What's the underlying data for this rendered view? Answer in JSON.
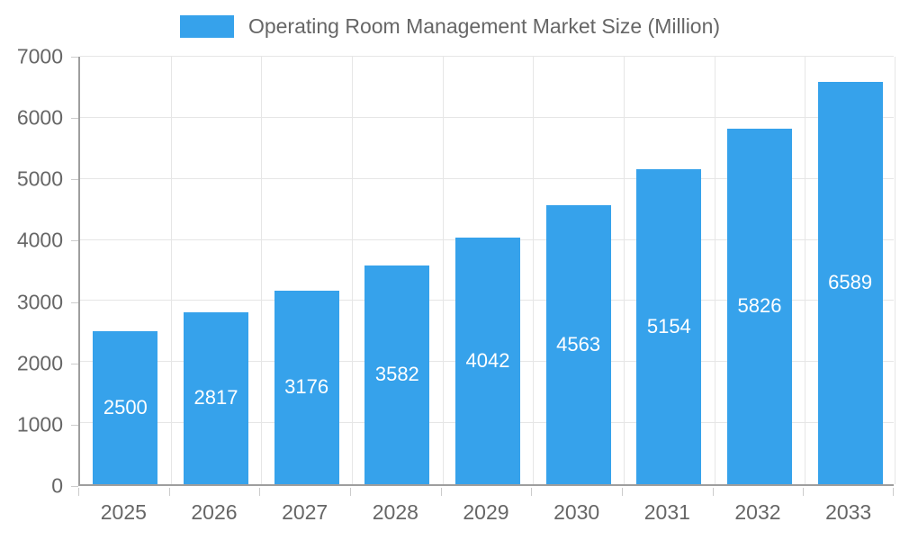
{
  "chart_data": {
    "type": "bar",
    "title": "Operating Room Management Market Size (Million)",
    "categories": [
      "2025",
      "2026",
      "2027",
      "2028",
      "2029",
      "2030",
      "2031",
      "2032",
      "2033"
    ],
    "values": [
      2500,
      2817,
      3176,
      3582,
      4042,
      4563,
      5154,
      5826,
      6589
    ],
    "xlabel": "",
    "ylabel": "",
    "ylim": [
      0,
      7000
    ],
    "ytick_step": 1000,
    "ytick_labels": [
      "0",
      "1000",
      "2000",
      "3000",
      "4000",
      "5000",
      "6000",
      "7000"
    ],
    "grid": "on",
    "legend_position": "top-center",
    "data_labels": "inside-center-white"
  },
  "colors": {
    "bar": "#36A2EB",
    "bar_label_text": "#ffffff",
    "axis_text": "#666666",
    "legend_text": "#666666",
    "gridline": "#e6e6e6",
    "tick_mark": "#cccccc",
    "axis_line": "#9e9e9e",
    "background": "#ffffff"
  },
  "legend": {
    "label": "Operating Room Management Market Size (Million)"
  }
}
